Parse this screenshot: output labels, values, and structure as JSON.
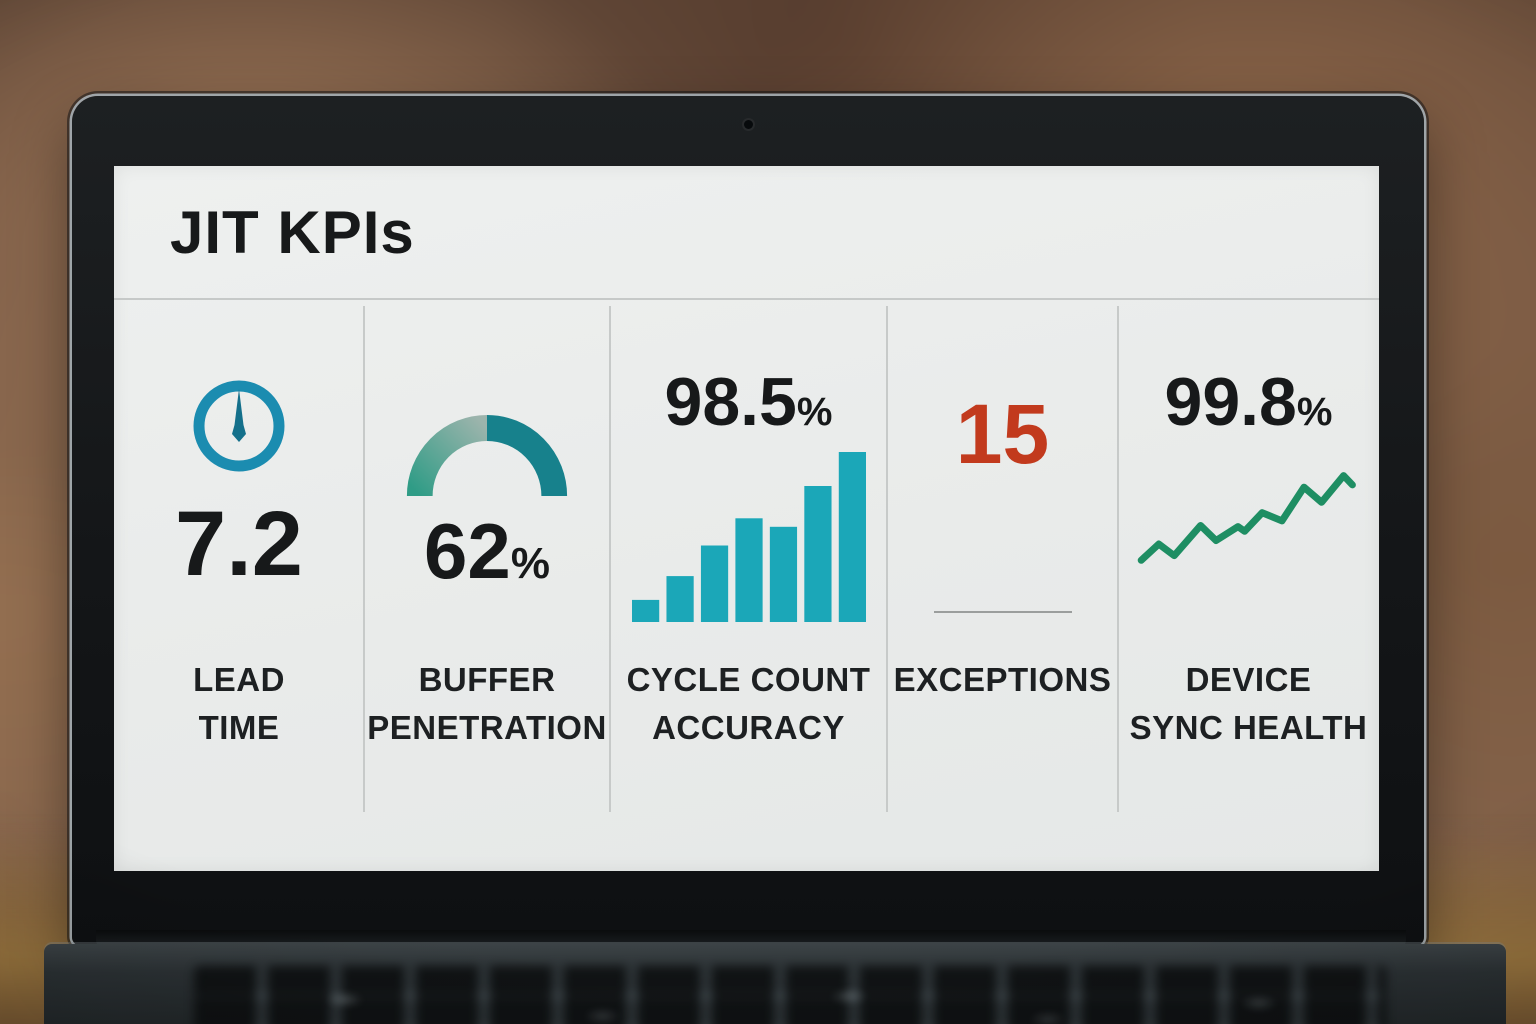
{
  "dashboard": {
    "title": "JIT KPIs"
  },
  "kpis": [
    {
      "id": "lead-time",
      "value": "7.2",
      "unit": "",
      "label_lines": [
        "LEAD",
        "TIME"
      ],
      "visual": "gauge-clock-icon"
    },
    {
      "id": "buffer-penetration",
      "value": "62",
      "unit": "%",
      "label_lines": [
        "BUFFER",
        "PENETRATION"
      ],
      "visual": "semicircle-gauge"
    },
    {
      "id": "cycle-count-accuracy",
      "value": "98.5",
      "unit": "%",
      "label_lines": [
        "CYCLE COUNT",
        "ACCURACY"
      ],
      "visual": "bar-chart"
    },
    {
      "id": "exceptions",
      "value": "15",
      "unit": "",
      "label_lines": [
        "EXCEPTIONS"
      ],
      "visual": "underline-rule"
    },
    {
      "id": "device-sync-health",
      "value": "99.8",
      "unit": "%",
      "label_lines": [
        "DEVICE",
        "SYNC HEALTH"
      ],
      "visual": "line-sparkline"
    }
  ],
  "chart_data": [
    {
      "type": "gauge",
      "title": "BUFFER PENETRATION",
      "value": 62,
      "unit": "%",
      "range": [
        0,
        100
      ],
      "shape": "semicircle",
      "color_split_percent": 50,
      "segments": [
        {
          "name": "left-half",
          "color_start": "#2f9c86",
          "color_end": "#9cb4ac"
        },
        {
          "name": "right-half",
          "color": "#17818c"
        }
      ]
    },
    {
      "type": "bar",
      "title": "CYCLE COUNT ACCURACY",
      "value_label": "98.5%",
      "values": [
        13,
        27,
        45,
        61,
        56,
        80,
        100
      ],
      "ylim": [
        0,
        100
      ],
      "bar_color": "#1ba7b8",
      "axis_labels": "none-visible"
    },
    {
      "type": "line",
      "title": "DEVICE SYNC HEALTH",
      "value_label": "99.8%",
      "points": [
        [
          1,
          83
        ],
        [
          9,
          69
        ],
        [
          16,
          79
        ],
        [
          28,
          53
        ],
        [
          35,
          66
        ],
        [
          45,
          54
        ],
        [
          48,
          58
        ],
        [
          56,
          42
        ],
        [
          65,
          49
        ],
        [
          75,
          20
        ],
        [
          83,
          33
        ],
        [
          93,
          10
        ],
        [
          97,
          18
        ]
      ],
      "trend": "upward",
      "line_color": "#1e8e63",
      "axis_labels": "none-visible"
    }
  ],
  "colors": {
    "bar_fill": "#1ba7b8",
    "spark_line": "#1e8e63",
    "gauge_right": "#17818c",
    "clock_ring": "#1b8cb0",
    "clock_needle": "#14708b",
    "red_value": "#c23a1d",
    "text_dark": "#17191a"
  }
}
